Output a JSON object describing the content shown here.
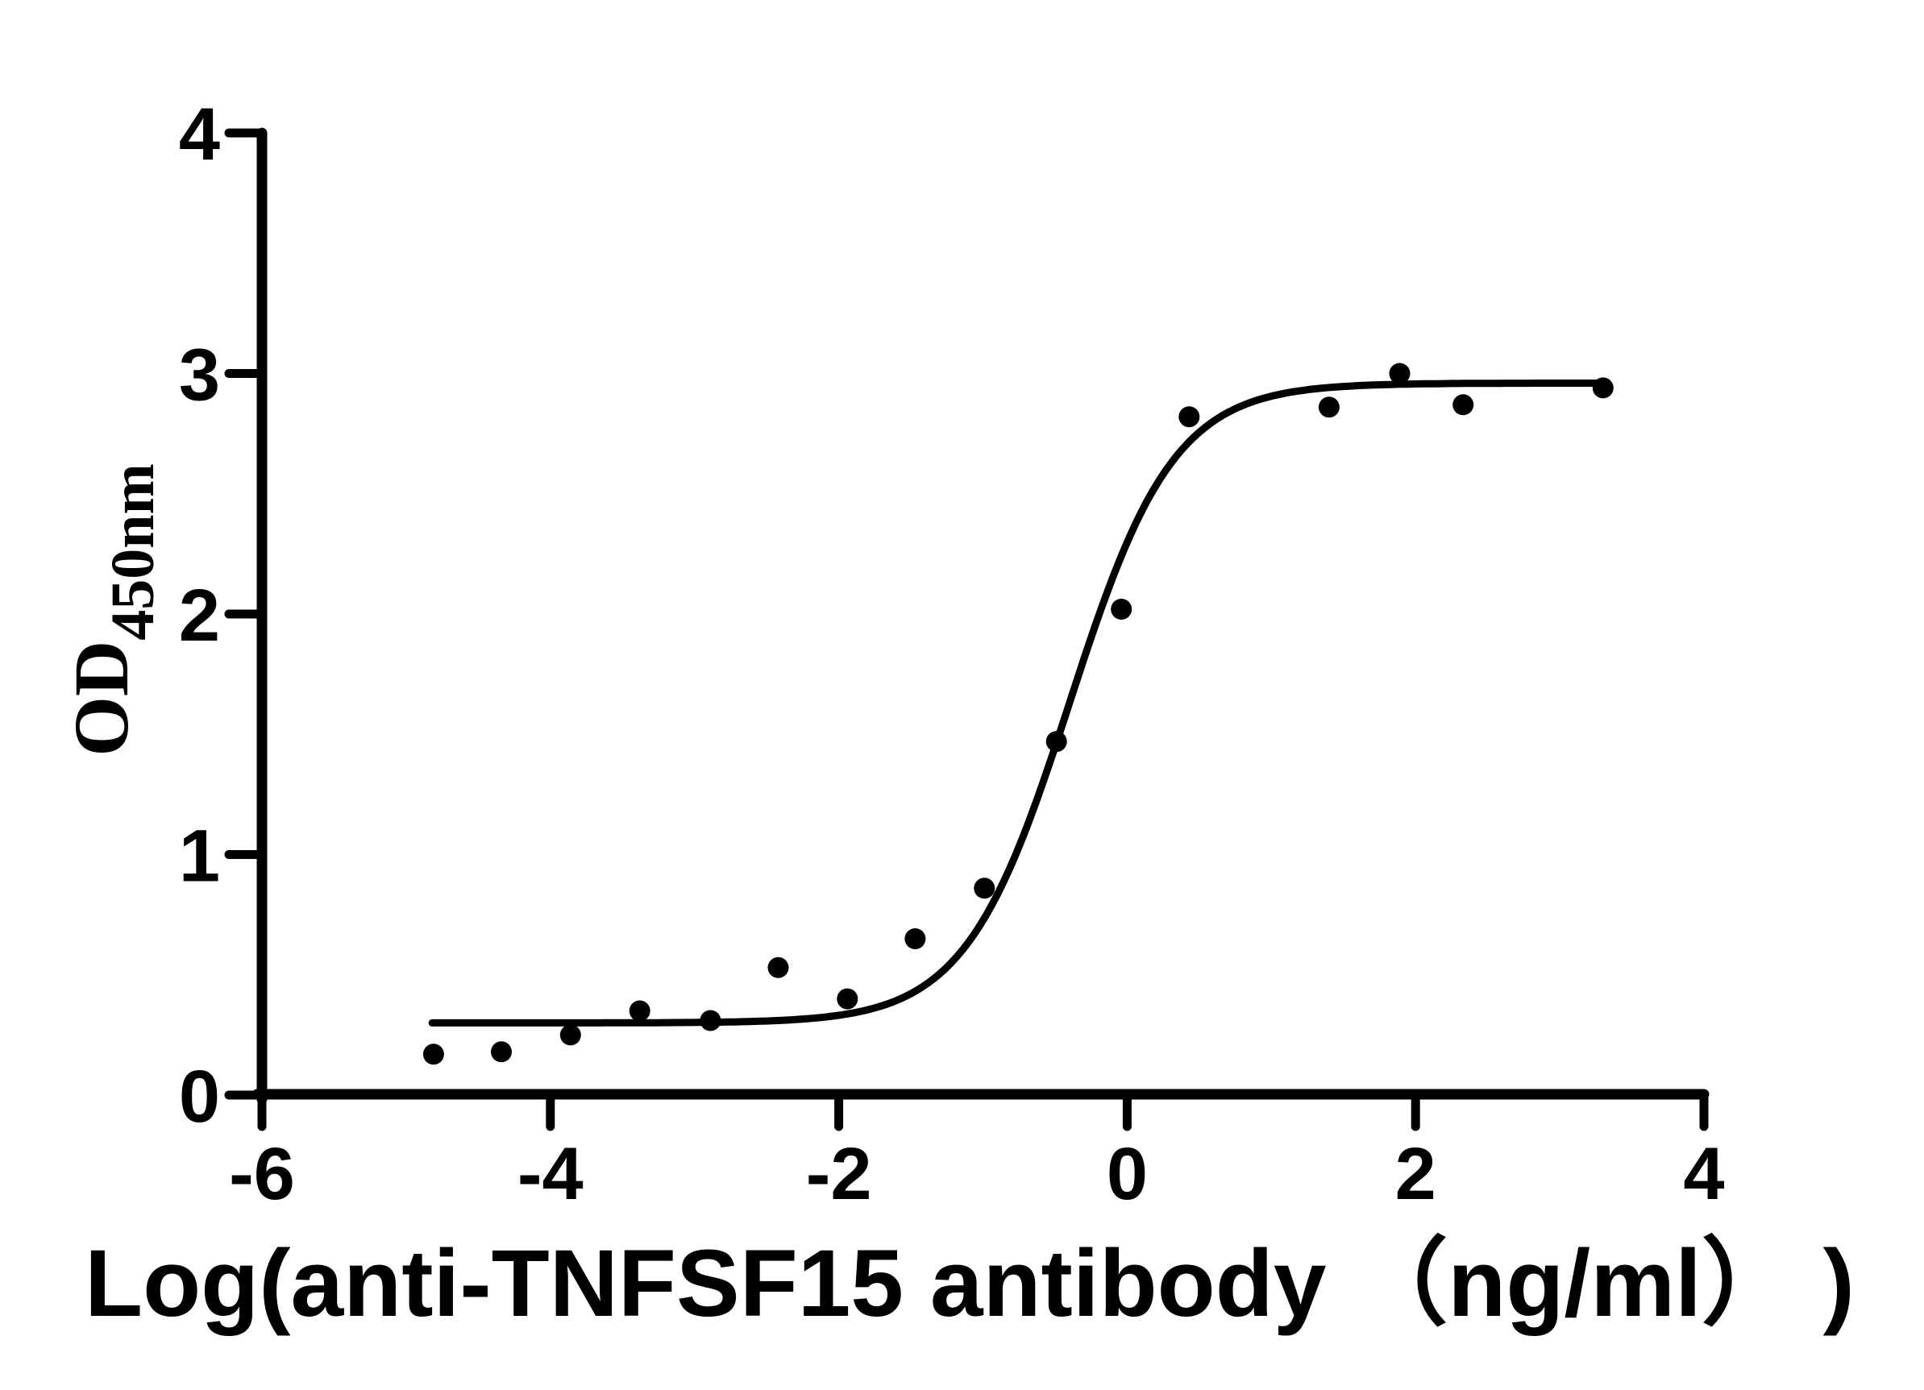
{
  "figure": {
    "background_color": "#ffffff",
    "ink_color": "#000000",
    "description": "ELISA dose-response binding curve, scatter points with sigmoidal 4PL fitted curve"
  },
  "chart_data": {
    "type": "scatter",
    "title": "",
    "grid": "off",
    "legend": "none",
    "x_axis": {
      "label": "Log(anti-TNFSF15 antibody （ng/ml） )",
      "min": -6,
      "max": 4,
      "ticks": [
        -6,
        -4,
        -2,
        0,
        2,
        4
      ],
      "tick_labels": [
        "-6",
        "-4",
        "-2",
        "0",
        "2",
        "4"
      ]
    },
    "y_axis": {
      "label_main": "OD",
      "label_sub": "450nm",
      "min": 0,
      "max": 4,
      "ticks": [
        0,
        1,
        2,
        3,
        4
      ],
      "tick_labels": [
        "0",
        "1",
        "2",
        "3",
        "4"
      ]
    },
    "points": [
      [
        -4.81,
        0.17
      ],
      [
        -4.34,
        0.18
      ],
      [
        -3.86,
        0.25
      ],
      [
        -3.38,
        0.35
      ],
      [
        -2.89,
        0.31
      ],
      [
        -2.42,
        0.53
      ],
      [
        -1.94,
        0.4
      ],
      [
        -1.47,
        0.65
      ],
      [
        -0.99,
        0.86
      ],
      [
        -0.49,
        1.47
      ],
      [
        -0.04,
        2.02
      ],
      [
        0.43,
        2.82
      ],
      [
        1.4,
        2.86
      ],
      [
        1.89,
        3.0
      ],
      [
        2.33,
        2.87
      ],
      [
        3.3,
        2.94
      ]
    ],
    "marker": {
      "shape": "circle",
      "color": "#000000"
    },
    "curve_fit": {
      "model": "4PL logistic",
      "bottom": 0.3,
      "top": 2.96,
      "log_ec50": -0.4,
      "hill": 1.2,
      "x_start": -4.82,
      "x_end": 3.3,
      "color": "#000000"
    }
  }
}
